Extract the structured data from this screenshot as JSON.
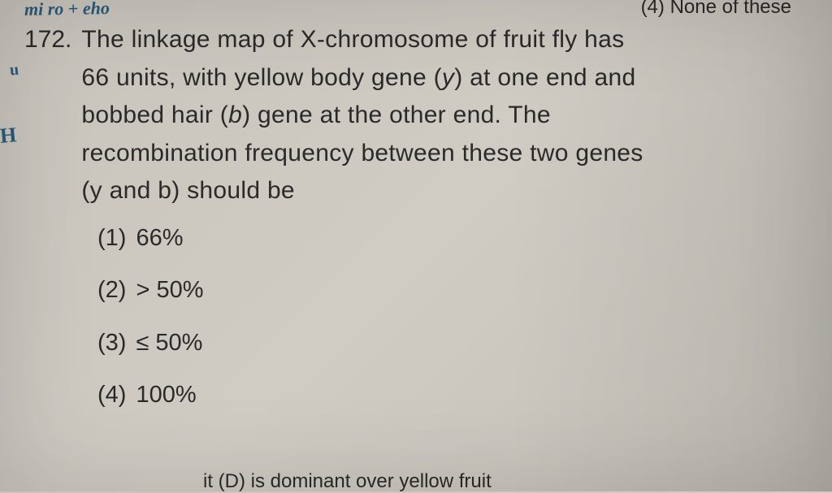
{
  "handwritten": {
    "top": "mi ro + eho",
    "margin1": "u",
    "margin2": "H"
  },
  "cutoff": {
    "topRight": "(4) None of these",
    "bottom": "it (D) is dominant over yellow fruit"
  },
  "question": {
    "number": "172.",
    "line1_a": "The linkage map of X-chromosome of fruit fly has",
    "line2_a": "66 units, with yellow body gene (",
    "line2_y": "y",
    "line2_b": ") at one end and",
    "line3_a": "bobbed hair (",
    "line3_b": "b",
    "line3_c": ") gene at the other end. The",
    "line4": "recombination frequency between these two genes",
    "line5": "(y and b) should be"
  },
  "options": {
    "o1_num": "(1)",
    "o1_text": "66%",
    "o2_num": "(2)",
    "o2_text": "> 50%",
    "o3_num": "(3)",
    "o3_text": "≤ 50%",
    "o4_num": "(4)",
    "o4_text": "100%"
  },
  "colors": {
    "text": "#2a2a2a",
    "handwritten": "#2a5a7a",
    "background": "#c8c4bc"
  }
}
